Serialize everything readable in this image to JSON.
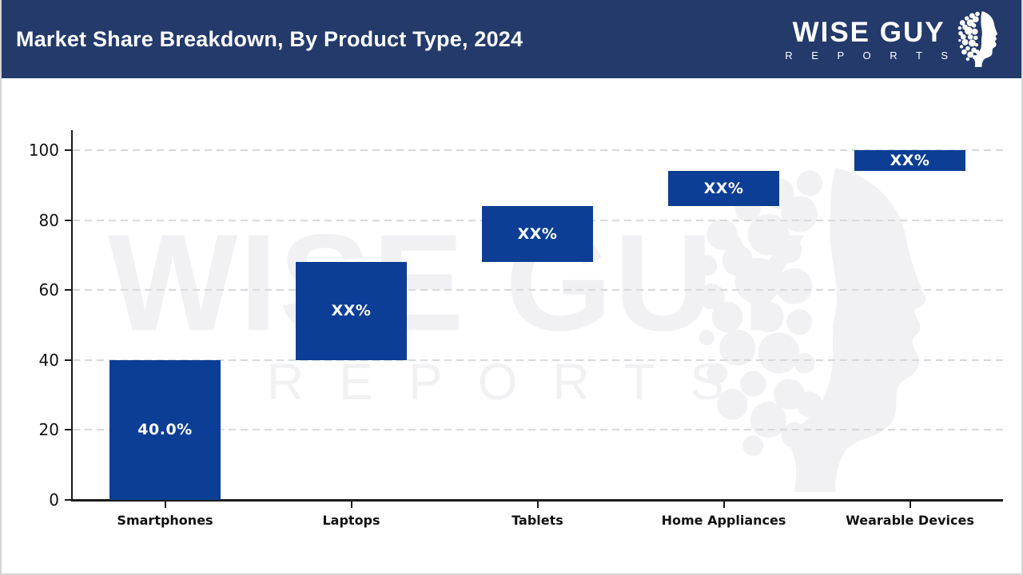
{
  "header": {
    "title": "Market Share Breakdown, By Product Type, 2024",
    "bg_color": "#233a6b",
    "logo": {
      "line1": "WISE GUY",
      "line2": "R E P O R T S",
      "icon": "wiseguy-head-icon"
    }
  },
  "watermark": {
    "line1": "WISE GUY",
    "line2": "REPORTS",
    "icon": "wiseguy-head-icon",
    "color": "#f1f1f4"
  },
  "chart_data": {
    "type": "bar",
    "subtype": "floating-waterfall",
    "title": "Market Share Breakdown, By Product Type, 2024",
    "categories": [
      "Smartphones",
      "Laptops",
      "Tablets",
      "Home Appliances",
      "Wearable Devices"
    ],
    "segments": [
      {
        "category": "Smartphones",
        "start": 0,
        "end": 40,
        "value": 40,
        "label": "40.0%"
      },
      {
        "category": "Laptops",
        "start": 40,
        "end": 68,
        "value": 28,
        "label": "XX%"
      },
      {
        "category": "Tablets",
        "start": 68,
        "end": 84,
        "value": 16,
        "label": "XX%"
      },
      {
        "category": "Home Appliances",
        "start": 84,
        "end": 94,
        "value": 10,
        "label": "XX%"
      },
      {
        "category": "Wearable Devices",
        "start": 94,
        "end": 100,
        "value": 6,
        "label": "XX%"
      }
    ],
    "yticks": [
      0,
      20,
      40,
      60,
      80,
      100
    ],
    "ylim": [
      0,
      105.7
    ],
    "xlabel": "",
    "ylabel": "",
    "grid": "horizontal-dashed",
    "legend": "none",
    "bar_color": "#0b3e94",
    "bar_label_color": "#ffffff",
    "gridline_color": "#d9d9d9",
    "axis_color": "#1a1a1a"
  }
}
